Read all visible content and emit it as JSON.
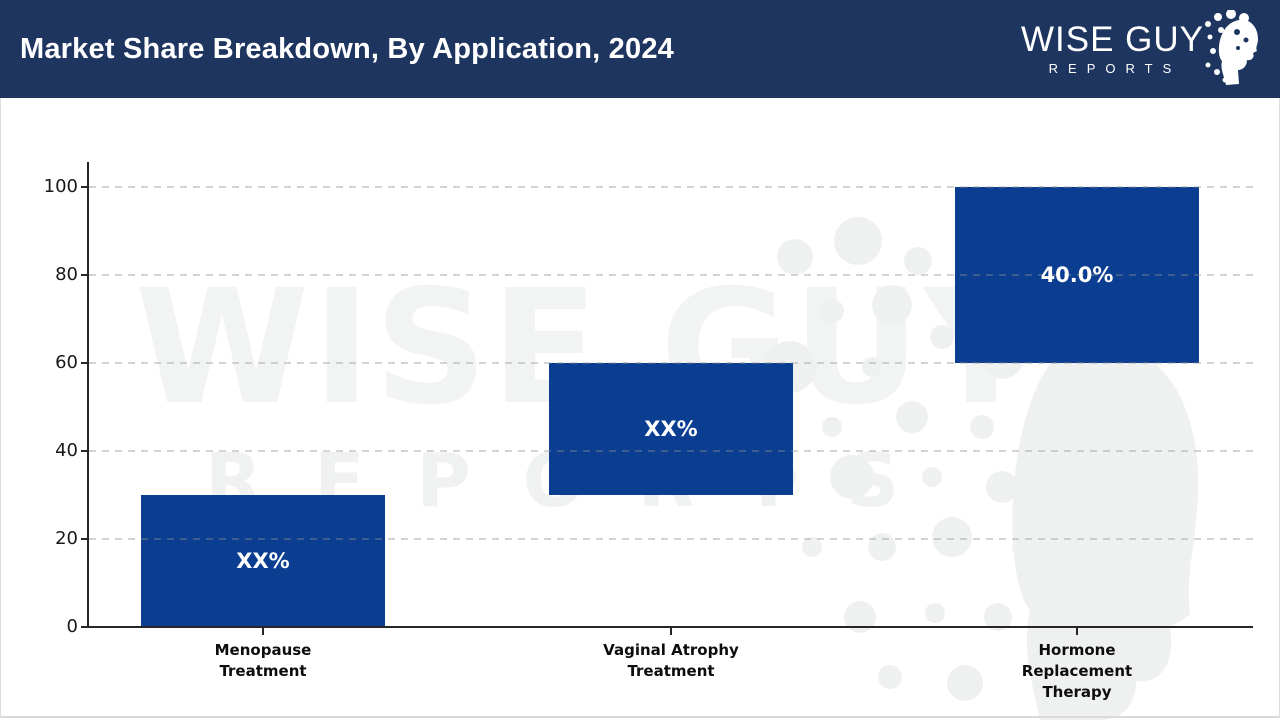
{
  "header": {
    "title": "Market Share Breakdown, By Application, 2024",
    "bg_color": "#1e3560",
    "logo_line1": "WISE GUY",
    "logo_line2": "REPORTS"
  },
  "watermark": {
    "line1": "WISE GUY",
    "line2": "REPORTS"
  },
  "chart_data": {
    "type": "bar",
    "subtype": "floating-segment-waterfall",
    "title": "Market Share Breakdown, By Application, 2024",
    "categories": [
      "Menopause\nTreatment",
      "Vaginal Atrophy\nTreatment",
      "Hormone\nReplacement\nTherapy"
    ],
    "segments": [
      {
        "category": "Menopause Treatment",
        "start": 0,
        "end": 30,
        "label": "XX%"
      },
      {
        "category": "Vaginal Atrophy Treatment",
        "start": 30,
        "end": 60,
        "label": "XX%"
      },
      {
        "category": "Hormone Replacement Therapy",
        "start": 60,
        "end": 100,
        "label": "40.0%"
      }
    ],
    "yticks": [
      0,
      20,
      40,
      60,
      80,
      100
    ],
    "ylim": [
      0,
      106
    ],
    "xlabel": "",
    "ylabel": "",
    "grid": "horizontal-dashed",
    "legend": "none",
    "bar_color": "#0b3d91",
    "bar_label_color": "#ffffff",
    "axis_color": "#262626"
  }
}
